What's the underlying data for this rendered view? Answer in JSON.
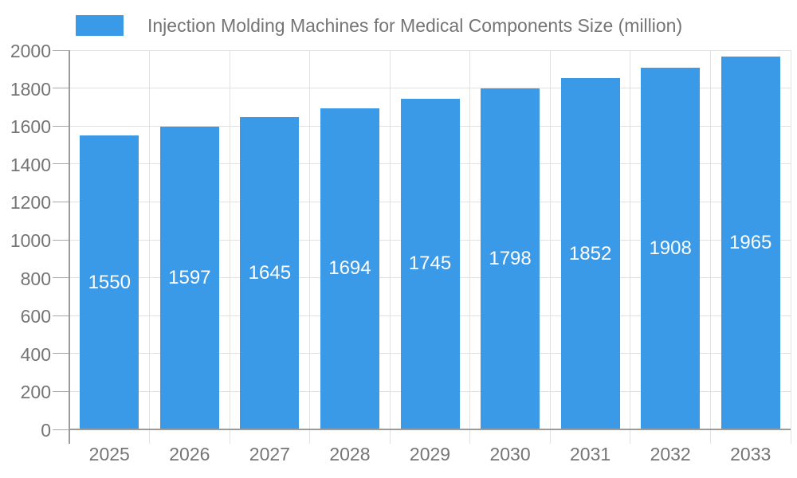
{
  "chart_data": {
    "type": "bar",
    "title": "",
    "legend": [
      "Injection Molding Machines for Medical Components Size (million)"
    ],
    "categories": [
      "2025",
      "2026",
      "2027",
      "2028",
      "2029",
      "2030",
      "2031",
      "2032",
      "2033"
    ],
    "values": [
      1550,
      1597,
      1645,
      1694,
      1745,
      1798,
      1852,
      1908,
      1965
    ],
    "ylim": [
      0,
      2000
    ],
    "ytick_step": 200,
    "ytick_labels": [
      "0",
      "200",
      "400",
      "600",
      "800",
      "1000",
      "1200",
      "1400",
      "1600",
      "1800",
      "2000"
    ],
    "grid": true,
    "legend_position": "top-left",
    "colors": {
      "bar": "#3B9AE8",
      "bar_label": "#FFFFFF",
      "axis_label": "#757575",
      "gridline": "#E1E1E1",
      "axis_line": "#9B9B9B",
      "tick": "#A8A8A8",
      "background": "#FFFFFF"
    }
  }
}
